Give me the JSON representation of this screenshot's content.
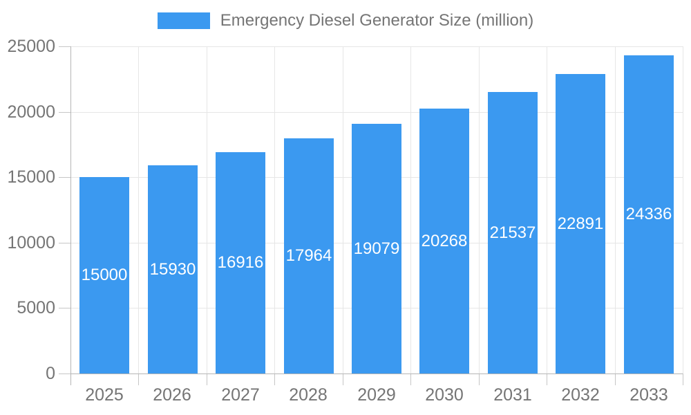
{
  "chart_data": {
    "type": "bar",
    "title": "Emergency Diesel Generator Size (million)",
    "categories": [
      "2025",
      "2026",
      "2027",
      "2028",
      "2029",
      "2030",
      "2031",
      "2032",
      "2033"
    ],
    "series": [
      {
        "name": "Emergency Diesel Generator Size (million)",
        "values": [
          15000,
          15930,
          16916,
          17964,
          19079,
          20268,
          21537,
          22891,
          24336
        ]
      }
    ],
    "xlabel": "",
    "ylabel": "",
    "ylim": [
      0,
      25000
    ],
    "yticks": [
      0,
      5000,
      10000,
      15000,
      20000,
      25000
    ],
    "grid": true,
    "legend_position": "top",
    "bar_value_labels_visible": true,
    "colors": {
      "bar": "#3B99F0",
      "bar_label_text": "#FFFFFF",
      "axis_text": "#757575",
      "legend_text": "#757575",
      "axis_line": "#B5B5B5",
      "tick_mark": "#C6C6C6",
      "gridline": "#E6E6E6",
      "background": "#FFFFFF"
    }
  }
}
